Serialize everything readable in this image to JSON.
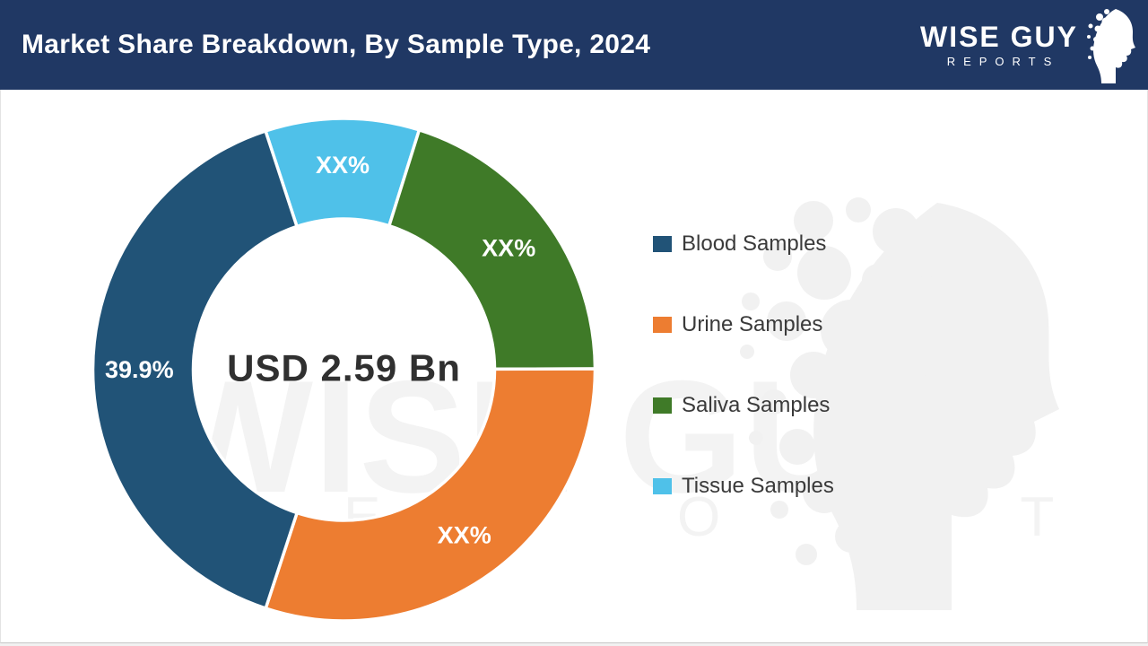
{
  "header": {
    "title": "Market Share Breakdown, By Sample Type, 2024",
    "bg_color": "#203864",
    "logo": {
      "line1": "WISE GUY",
      "line2": "REPORTS"
    }
  },
  "watermark": {
    "line1": "WISE GUY",
    "line2": "R E P O R T S"
  },
  "chart_data": {
    "type": "pie",
    "title": "Market Share Breakdown, By Sample Type, 2024",
    "center_label": "USD 2.59 Bn",
    "donut_hole_ratio": 0.6,
    "start_angle_deg": -18.2,
    "direction": "clockwise",
    "legend_position": "right",
    "slices": [
      {
        "name": "Tissue Samples",
        "value": 9.9,
        "label": "XX%",
        "color": "#4FC1E9"
      },
      {
        "name": "Saliva Samples",
        "value": 20.1,
        "label": "XX%",
        "color": "#3F7A28"
      },
      {
        "name": "Urine Samples",
        "value": 30.1,
        "label": "XX%",
        "color": "#ED7D31"
      },
      {
        "name": "Blood Samples",
        "value": 39.9,
        "label": "39.9%",
        "color": "#215377"
      }
    ]
  },
  "legend": {
    "items": [
      {
        "label": "Blood Samples",
        "color": "#215377"
      },
      {
        "label": "Urine Samples",
        "color": "#ED7D31"
      },
      {
        "label": "Saliva Samples",
        "color": "#3F7A28"
      },
      {
        "label": "Tissue Samples",
        "color": "#4FC1E9"
      }
    ]
  }
}
